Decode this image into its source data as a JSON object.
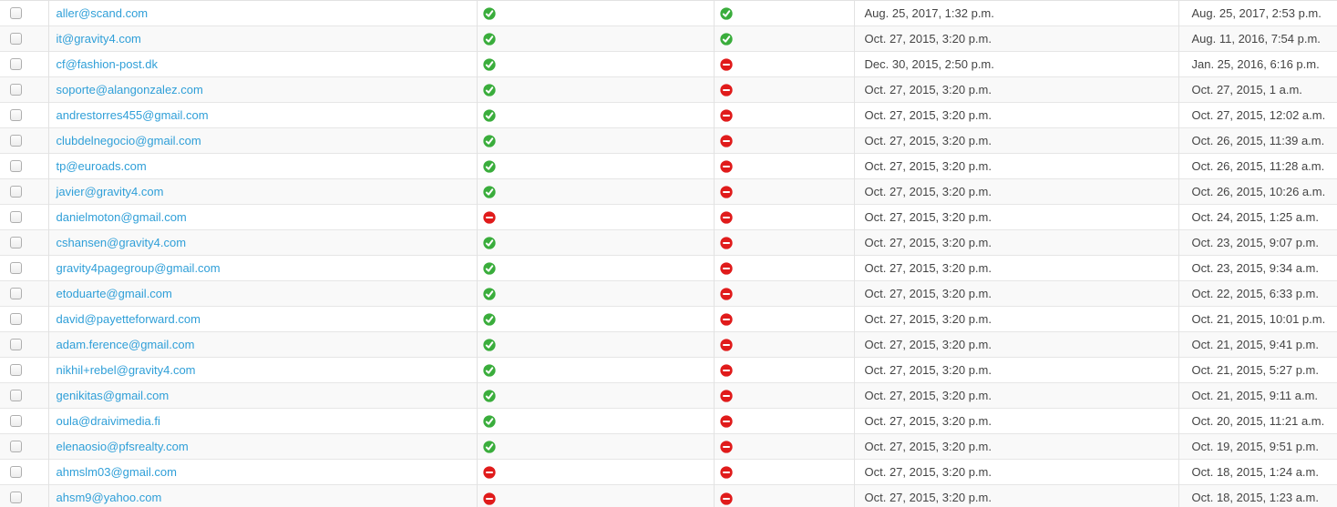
{
  "colors": {
    "link_blue": "#2f9fd8",
    "text_dark": "#444444",
    "icon_green": "#3aad3c",
    "icon_red": "#e01b1b",
    "row_alt_bg": "#f9f9f9",
    "border": "#e2e2e2"
  },
  "icons": {
    "yes": "check-circle-icon",
    "no": "minus-circle-icon"
  },
  "table": {
    "rows": [
      {
        "email": "aller@scand.com",
        "status_a": true,
        "status_b": true,
        "datetime_a": "Aug. 25, 2017, 1:32 p.m.",
        "datetime_b": "Aug. 25, 2017, 2:53 p.m."
      },
      {
        "email": "it@gravity4.com",
        "status_a": true,
        "status_b": true,
        "datetime_a": "Oct. 27, 2015, 3:20 p.m.",
        "datetime_b": "Aug. 11, 2016, 7:54 p.m."
      },
      {
        "email": "cf@fashion-post.dk",
        "status_a": true,
        "status_b": false,
        "datetime_a": "Dec. 30, 2015, 2:50 p.m.",
        "datetime_b": "Jan. 25, 2016, 6:16 p.m."
      },
      {
        "email": "soporte@alangonzalez.com",
        "status_a": true,
        "status_b": false,
        "datetime_a": "Oct. 27, 2015, 3:20 p.m.",
        "datetime_b": "Oct. 27, 2015, 1 a.m."
      },
      {
        "email": "andrestorres455@gmail.com",
        "status_a": true,
        "status_b": false,
        "datetime_a": "Oct. 27, 2015, 3:20 p.m.",
        "datetime_b": "Oct. 27, 2015, 12:02 a.m."
      },
      {
        "email": "clubdelnegocio@gmail.com",
        "status_a": true,
        "status_b": false,
        "datetime_a": "Oct. 27, 2015, 3:20 p.m.",
        "datetime_b": "Oct. 26, 2015, 11:39 a.m."
      },
      {
        "email": "tp@euroads.com",
        "status_a": true,
        "status_b": false,
        "datetime_a": "Oct. 27, 2015, 3:20 p.m.",
        "datetime_b": "Oct. 26, 2015, 11:28 a.m."
      },
      {
        "email": "javier@gravity4.com",
        "status_a": true,
        "status_b": false,
        "datetime_a": "Oct. 27, 2015, 3:20 p.m.",
        "datetime_b": "Oct. 26, 2015, 10:26 a.m."
      },
      {
        "email": "danielmoton@gmail.com",
        "status_a": false,
        "status_b": false,
        "datetime_a": "Oct. 27, 2015, 3:20 p.m.",
        "datetime_b": "Oct. 24, 2015, 1:25 a.m."
      },
      {
        "email": "cshansen@gravity4.com",
        "status_a": true,
        "status_b": false,
        "datetime_a": "Oct. 27, 2015, 3:20 p.m.",
        "datetime_b": "Oct. 23, 2015, 9:07 p.m."
      },
      {
        "email": "gravity4pagegroup@gmail.com",
        "status_a": true,
        "status_b": false,
        "datetime_a": "Oct. 27, 2015, 3:20 p.m.",
        "datetime_b": "Oct. 23, 2015, 9:34 a.m."
      },
      {
        "email": "etoduarte@gmail.com",
        "status_a": true,
        "status_b": false,
        "datetime_a": "Oct. 27, 2015, 3:20 p.m.",
        "datetime_b": "Oct. 22, 2015, 6:33 p.m."
      },
      {
        "email": "david@payetteforward.com",
        "status_a": true,
        "status_b": false,
        "datetime_a": "Oct. 27, 2015, 3:20 p.m.",
        "datetime_b": "Oct. 21, 2015, 10:01 p.m."
      },
      {
        "email": "adam.ference@gmail.com",
        "status_a": true,
        "status_b": false,
        "datetime_a": "Oct. 27, 2015, 3:20 p.m.",
        "datetime_b": "Oct. 21, 2015, 9:41 p.m."
      },
      {
        "email": "nikhil+rebel@gravity4.com",
        "status_a": true,
        "status_b": false,
        "datetime_a": "Oct. 27, 2015, 3:20 p.m.",
        "datetime_b": "Oct. 21, 2015, 5:27 p.m."
      },
      {
        "email": "genikitas@gmail.com",
        "status_a": true,
        "status_b": false,
        "datetime_a": "Oct. 27, 2015, 3:20 p.m.",
        "datetime_b": "Oct. 21, 2015, 9:11 a.m."
      },
      {
        "email": "oula@draivimedia.fi",
        "status_a": true,
        "status_b": false,
        "datetime_a": "Oct. 27, 2015, 3:20 p.m.",
        "datetime_b": "Oct. 20, 2015, 11:21 a.m."
      },
      {
        "email": "elenaosio@pfsrealty.com",
        "status_a": true,
        "status_b": false,
        "datetime_a": "Oct. 27, 2015, 3:20 p.m.",
        "datetime_b": "Oct. 19, 2015, 9:51 p.m."
      },
      {
        "email": "ahmslm03@gmail.com",
        "status_a": false,
        "status_b": false,
        "datetime_a": "Oct. 27, 2015, 3:20 p.m.",
        "datetime_b": "Oct. 18, 2015, 1:24 a.m."
      },
      {
        "email": "ahsm9@yahoo.com",
        "status_a": false,
        "status_b": false,
        "datetime_a": "Oct. 27, 2015, 3:20 p.m.",
        "datetime_b": "Oct. 18, 2015, 1:23 a.m."
      }
    ]
  }
}
